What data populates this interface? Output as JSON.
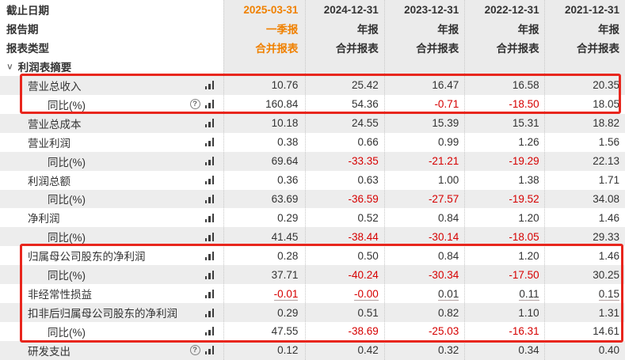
{
  "header": {
    "rows": [
      {
        "label": "截止日期",
        "values": [
          "2025-03-31",
          "2024-12-31",
          "2023-12-31",
          "2022-12-31",
          "2021-12-31"
        ]
      },
      {
        "label": "报告期",
        "values": [
          "一季报",
          "年报",
          "年报",
          "年报",
          "年报"
        ]
      },
      {
        "label": "报表类型",
        "values": [
          "合并报表",
          "合并报表",
          "合并报表",
          "合并报表",
          "合并报表"
        ]
      }
    ]
  },
  "section": {
    "title": "利润表摘要",
    "chevron_glyph": "∨"
  },
  "table": {
    "rows": [
      {
        "label": "营业总收入",
        "indent": false,
        "help": false,
        "underline": false,
        "values": [
          "10.76",
          "25.42",
          "16.47",
          "16.58",
          "20.35"
        ]
      },
      {
        "label": "同比(%)",
        "indent": true,
        "help": true,
        "underline": false,
        "values": [
          "160.84",
          "54.36",
          "-0.71",
          "-18.50",
          "18.05"
        ]
      },
      {
        "label": "营业总成本",
        "indent": false,
        "help": false,
        "underline": false,
        "values": [
          "10.18",
          "24.55",
          "15.39",
          "15.31",
          "18.82"
        ]
      },
      {
        "label": "营业利润",
        "indent": false,
        "help": false,
        "underline": false,
        "values": [
          "0.38",
          "0.66",
          "0.99",
          "1.26",
          "1.56"
        ]
      },
      {
        "label": "同比(%)",
        "indent": true,
        "help": false,
        "underline": false,
        "values": [
          "69.64",
          "-33.35",
          "-21.21",
          "-19.29",
          "22.13"
        ]
      },
      {
        "label": "利润总额",
        "indent": false,
        "help": false,
        "underline": false,
        "values": [
          "0.36",
          "0.63",
          "1.00",
          "1.38",
          "1.71"
        ]
      },
      {
        "label": "同比(%)",
        "indent": true,
        "help": false,
        "underline": false,
        "values": [
          "63.69",
          "-36.59",
          "-27.57",
          "-19.52",
          "34.08"
        ]
      },
      {
        "label": "净利润",
        "indent": false,
        "help": false,
        "underline": false,
        "values": [
          "0.29",
          "0.52",
          "0.84",
          "1.20",
          "1.46"
        ]
      },
      {
        "label": "同比(%)",
        "indent": true,
        "help": false,
        "underline": false,
        "values": [
          "41.45",
          "-38.44",
          "-30.14",
          "-18.05",
          "29.33"
        ]
      },
      {
        "label": "归属母公司股东的净利润",
        "indent": false,
        "help": false,
        "underline": false,
        "values": [
          "0.28",
          "0.50",
          "0.84",
          "1.20",
          "1.46"
        ]
      },
      {
        "label": "同比(%)",
        "indent": true,
        "help": false,
        "underline": false,
        "values": [
          "37.71",
          "-40.24",
          "-30.34",
          "-17.50",
          "30.25"
        ]
      },
      {
        "label": "非经常性损益",
        "indent": false,
        "help": false,
        "underline": true,
        "values": [
          "-0.01",
          "-0.00",
          "0.01",
          "0.11",
          "0.15"
        ]
      },
      {
        "label": "扣非后归属母公司股东的净利润",
        "indent": false,
        "help": false,
        "underline": false,
        "values": [
          "0.29",
          "0.51",
          "0.82",
          "1.10",
          "1.31"
        ]
      },
      {
        "label": "同比(%)",
        "indent": true,
        "help": false,
        "underline": false,
        "values": [
          "47.55",
          "-38.69",
          "-25.03",
          "-16.31",
          "14.61"
        ]
      },
      {
        "label": "研发支出",
        "indent": false,
        "help": true,
        "underline": false,
        "values": [
          "0.12",
          "0.42",
          "0.32",
          "0.34",
          "0.40"
        ]
      }
    ]
  },
  "icons": {
    "help_glyph": "?",
    "bar_chart": "bar-chart-icon",
    "help": "help-icon",
    "chevron": "chevron-down-icon"
  },
  "colors": {
    "accent_orange": "#f08101",
    "negative_red": "#d60000",
    "annotation_red": "#e8261d",
    "row_stripe": "#ededed",
    "header_column_bg": "#ebebeb"
  }
}
